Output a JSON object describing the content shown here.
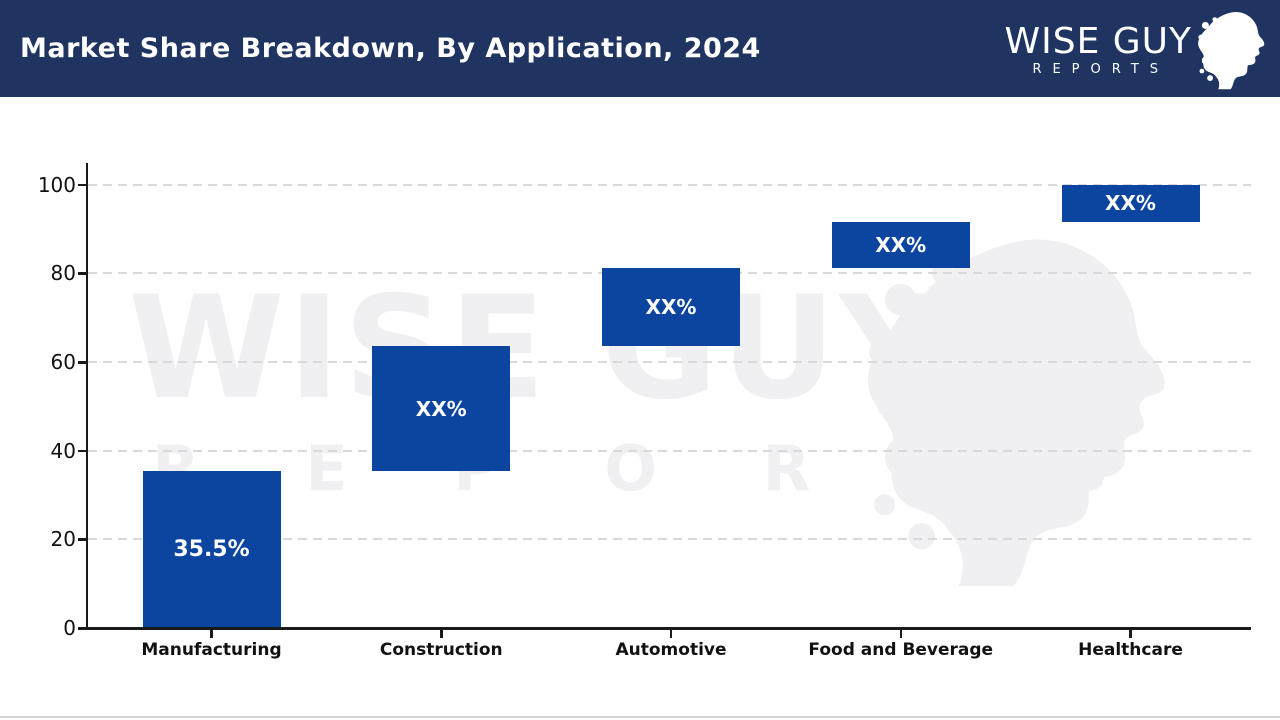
{
  "header": {
    "title": "Market Share Breakdown, By Application, 2024",
    "logo_line1": "WISE GUY",
    "logo_line2": "REPORTS"
  },
  "watermark": {
    "line1": "WISE GUY",
    "line2": "R E P O R T S"
  },
  "colors": {
    "header_bg": "#1f3460",
    "title_text": "#ffffff",
    "bar_blue": "#0b45a0",
    "bar_label_text": "#ffffff",
    "gridline": "#d9d9d9",
    "axis": "#1a1a1a",
    "watermark": "#f0f0f2",
    "bottom_border": "#d2d2d2"
  },
  "chart_data": {
    "type": "bar",
    "subtype": "waterfall-stacked-market-share",
    "title": "Market Share Breakdown, By Application, 2024",
    "categories": [
      "Manufacturing",
      "Construction",
      "Automotive",
      "Food and Beverage",
      "Healthcare"
    ],
    "segments": [
      {
        "category": "Manufacturing",
        "start": 0,
        "end": 35.5,
        "label": "35.5%"
      },
      {
        "category": "Construction",
        "start": 35.5,
        "end": 63.5,
        "label": "XX%"
      },
      {
        "category": "Automotive",
        "start": 63.5,
        "end": 81.3,
        "label": "XX%"
      },
      {
        "category": "Food and Beverage",
        "start": 81.3,
        "end": 91.5,
        "label": "XX%"
      },
      {
        "category": "Healthcare",
        "start": 91.5,
        "end": 100,
        "label": "XX%"
      }
    ],
    "y_ticks": [
      0,
      20,
      40,
      60,
      80,
      100
    ],
    "ylim": [
      0,
      105
    ],
    "xlabel": "",
    "ylabel": "",
    "grid": "horizontal-dashed",
    "legend": "none",
    "bar_color": "#0b45a0"
  }
}
